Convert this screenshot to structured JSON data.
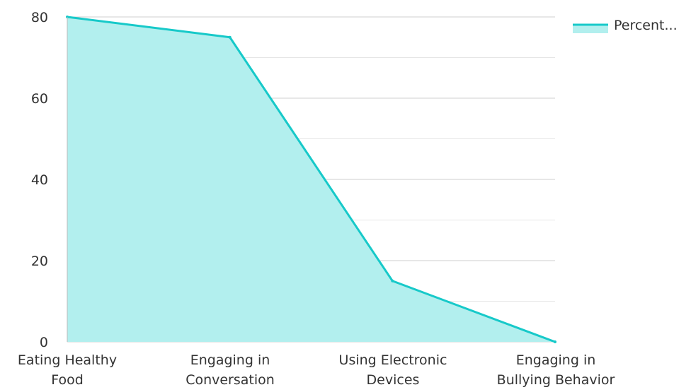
{
  "colors": {
    "line": "#17c9c9",
    "area": "#b2efee",
    "grid_major": "#cfcfcf",
    "grid_minor": "#e6e6e6",
    "axis": "#bbbbbb"
  },
  "legend": {
    "label": "Percent...",
    "placement": "top-right"
  },
  "chart_data": {
    "type": "area",
    "categories": [
      [
        "Eating Healthy",
        "Food"
      ],
      [
        "Engaging in",
        "Conversation"
      ],
      [
        "Using Electronic",
        "Devices"
      ],
      [
        "Engaging in",
        "Bullying Behavior"
      ]
    ],
    "series": [
      {
        "name": "Percent...",
        "values": [
          80,
          75,
          15,
          0
        ]
      }
    ],
    "ylim": [
      0,
      80
    ],
    "yticks": [
      0,
      20,
      40,
      60,
      80
    ],
    "grid": true,
    "title": "",
    "xlabel": "",
    "ylabel": ""
  }
}
